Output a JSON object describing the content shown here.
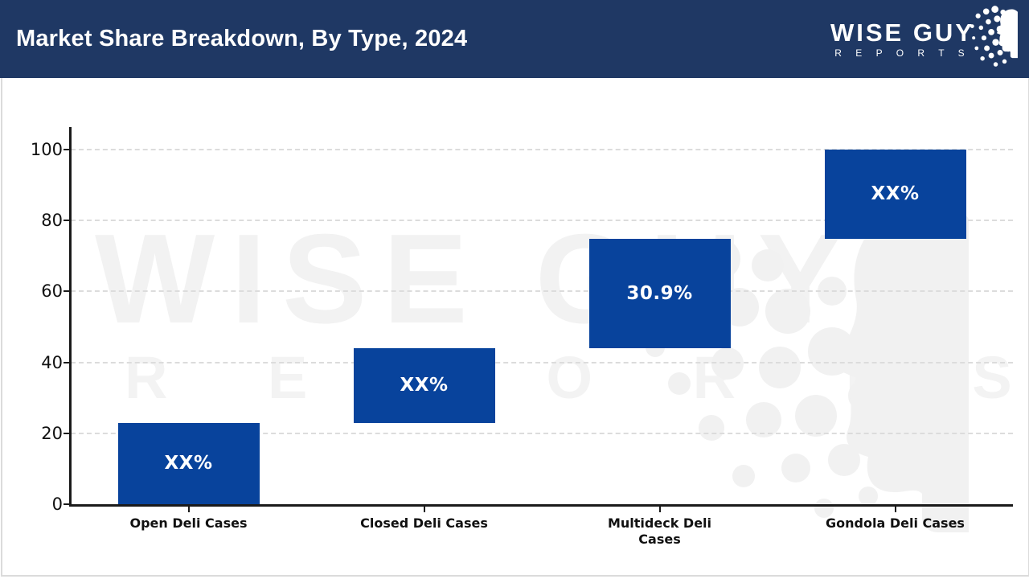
{
  "header": {
    "title": "Market Share Breakdown, By Type, 2024",
    "logo": {
      "name": "WISE GUY",
      "sub": "R E P O R T S"
    }
  },
  "watermark": {
    "name": "WISE GUY",
    "sub": "R E P O R T S"
  },
  "theme": {
    "header_bg": "#1F3864",
    "card_border": "#DBDBDB",
    "background": "#FFFFFF",
    "bar_color": "#08439C",
    "grid_color": "#DCDCDC",
    "axis_color": "#1A1A1A",
    "watermark_color": "#F2F2F2"
  },
  "chart_data": {
    "type": "bar",
    "subtype": "waterfall",
    "title": "Market Share Breakdown, By Type, 2024",
    "xlabel": "",
    "ylabel": "",
    "categories": [
      "Open Deli Cases",
      "Closed Deli Cases",
      "Multideck Deli Cases",
      "Gondola Deli Cases"
    ],
    "category_display_lines": [
      [
        "Open Deli Cases"
      ],
      [
        "Closed Deli Cases"
      ],
      [
        "Multideck Deli",
        "Cases"
      ],
      [
        "Gondola Deli Cases"
      ]
    ],
    "series": [
      {
        "name": "Market share (%)",
        "segments": [
          {
            "category": "Open Deli Cases",
            "start": 0,
            "end": 23,
            "label": "XX%"
          },
          {
            "category": "Closed Deli Cases",
            "start": 23,
            "end": 44,
            "label": "XX%"
          },
          {
            "category": "Multideck Deli Cases",
            "start": 44,
            "end": 74.9,
            "label": "30.9%"
          },
          {
            "category": "Gondola Deli Cases",
            "start": 74.9,
            "end": 100,
            "label": "XX%"
          }
        ]
      }
    ],
    "yticks": [
      0,
      20,
      40,
      60,
      80,
      100
    ],
    "ylim": [
      0,
      107
    ],
    "grid": "horizontal-dashed",
    "legend": "none",
    "bar_label_color": "#FFFFFF"
  }
}
